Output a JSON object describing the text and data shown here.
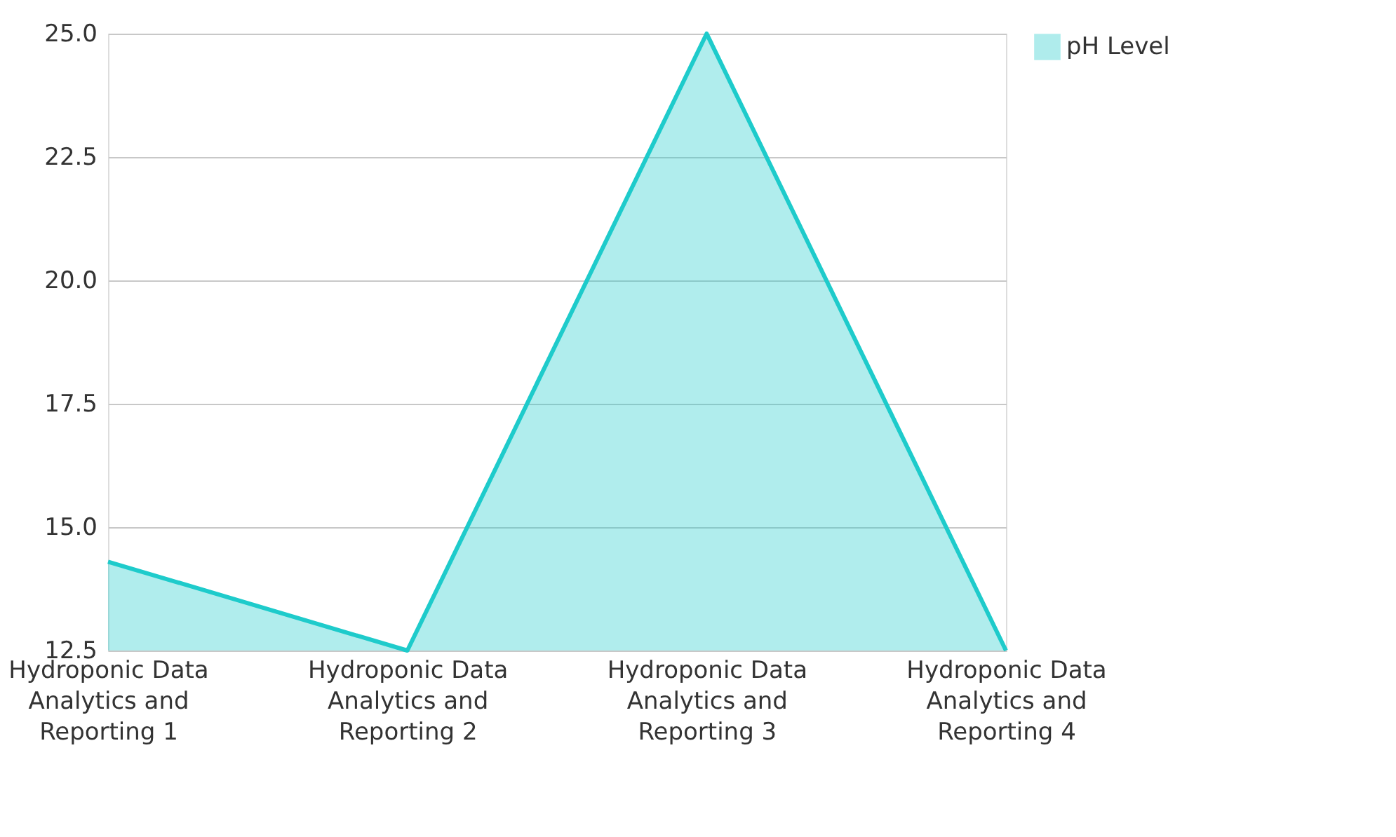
{
  "chart_data": {
    "type": "area",
    "categories": [
      "Hydroponic Data Analytics and Reporting 1",
      "Hydroponic Data Analytics and Reporting 2",
      "Hydroponic Data Analytics and Reporting 3",
      "Hydroponic Data Analytics and Reporting 4"
    ],
    "series": [
      {
        "name": "pH Level",
        "color": "#1ecbcb",
        "values": [
          14.3,
          12.5,
          25.0,
          12.5
        ]
      }
    ],
    "ylim": [
      12.5,
      25.0
    ],
    "yticks": [
      {
        "value": 12.5,
        "label": "12.5"
      },
      {
        "value": 15,
        "label": "15.0"
      },
      {
        "value": 17.5,
        "label": "17.5"
      },
      {
        "value": 20,
        "label": "20.0"
      },
      {
        "value": 22.5,
        "label": "22.5"
      },
      {
        "value": 25,
        "label": "25.0"
      }
    ],
    "grid": "y",
    "legend": "top right"
  }
}
